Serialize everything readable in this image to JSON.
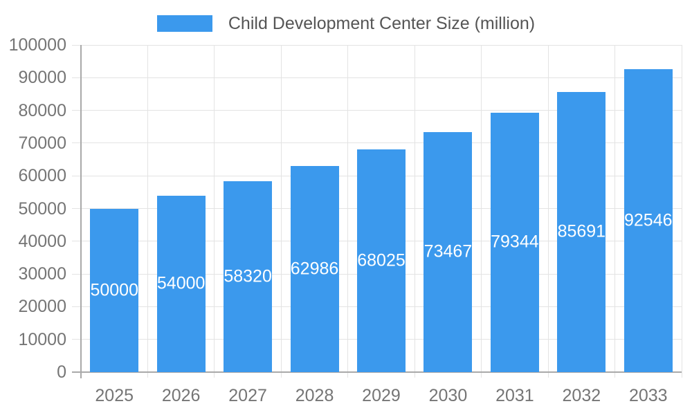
{
  "legend": {
    "label": "Child Development Center Size (million)"
  },
  "chart_data": {
    "type": "bar",
    "title": "Child Development Center Size (million)",
    "categories": [
      "2025",
      "2026",
      "2027",
      "2028",
      "2029",
      "2030",
      "2031",
      "2032",
      "2033"
    ],
    "values": [
      50000,
      54000,
      58320,
      62986,
      68025,
      73467,
      79344,
      85691,
      92546
    ],
    "value_labels": [
      "50000",
      "54000",
      "58320",
      "62986",
      "68025",
      "73467",
      "79344",
      "85691",
      "92546"
    ],
    "xlabel": "",
    "ylabel": "",
    "ylim": [
      0,
      100000
    ],
    "ytick_step": 10000,
    "ytick_labels": [
      "0",
      "10000",
      "20000",
      "30000",
      "40000",
      "50000",
      "60000",
      "70000",
      "80000",
      "90000",
      "100000"
    ],
    "grid": true,
    "legend_position": "top-center",
    "colors": {
      "bar": "#3B99ED",
      "value_label": "#FFFFFF",
      "axis_line": "#A9A9A9",
      "gridline": "#E3E3E3",
      "tick_label": "#757575",
      "legend_text": "#555555",
      "background": "#FFFFFF"
    }
  }
}
